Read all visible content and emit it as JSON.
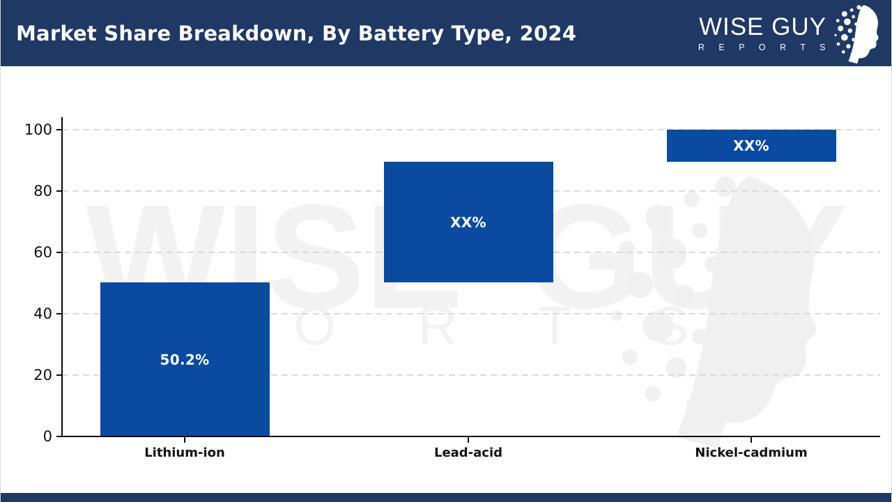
{
  "header": {
    "title": "Market Share Breakdown, By Battery Type, 2024",
    "logo_line1": "WISE GUY",
    "logo_line2": "R E P O R T S"
  },
  "watermark": {
    "line1": "WISE GUY",
    "line2": "P O R T S"
  },
  "colors": {
    "header_bg": "#1f3864",
    "footer_bg": "#1f3864",
    "bar": "#0b4aa1",
    "grid": "#d9d9d9",
    "axis": "#0a0a0a",
    "bar_label": "#ffffff",
    "watermark": "#f2f2f2"
  },
  "chart_data": {
    "type": "bar",
    "subtype": "floating-waterfall",
    "title": "Market Share Breakdown, By Battery Type, 2024",
    "categories": [
      "Lithium-ion",
      "Lead-acid",
      "Nickel-cadmium"
    ],
    "segments": [
      {
        "category": "Lithium-ion",
        "start": 0,
        "end": 50.2,
        "label": "50.2%"
      },
      {
        "category": "Lead-acid",
        "start": 50.2,
        "end": 89.5,
        "label": "XX%"
      },
      {
        "category": "Nickel-cadmium",
        "start": 89.5,
        "end": 100,
        "label": "XX%"
      }
    ],
    "yticks": [
      0,
      20,
      40,
      60,
      80,
      100
    ],
    "ylim": [
      0,
      104
    ],
    "xlabel": "",
    "ylabel": "",
    "grid": "horizontal-dashed",
    "legend": "none"
  }
}
